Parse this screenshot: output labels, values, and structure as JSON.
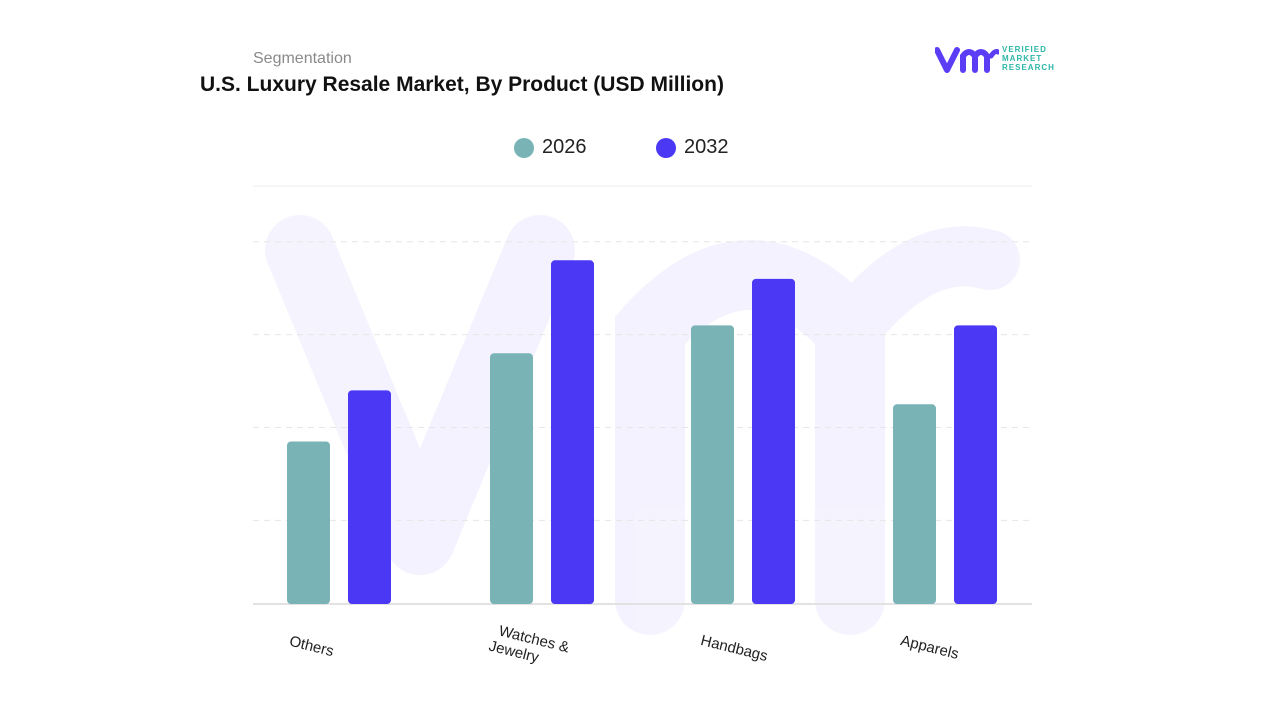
{
  "header": {
    "segment_label": "Segmentation",
    "title": "U.S. Luxury Resale Market, By Product (USD Million)"
  },
  "logo": {
    "line1": "VERIFIED",
    "line2": "MARKET",
    "line3": "RESEARCH",
    "color_primary": "#5b3df5",
    "color_secondary": "#2cb6a8"
  },
  "chart_data": {
    "type": "bar",
    "categories": [
      "Others",
      "Watches & Jewelry",
      "Handbags",
      "Apparels"
    ],
    "series": [
      {
        "name": "2026",
        "color": "#7ab3b6",
        "values": [
          35,
          54,
          60,
          43
        ]
      },
      {
        "name": "2032",
        "color": "#4b38f5",
        "values": [
          46,
          74,
          70,
          60
        ]
      }
    ],
    "ylim": [
      0,
      90
    ],
    "y_axis_labels_shown": false,
    "grid": true,
    "legend_position": "top-center",
    "xlabel": "",
    "ylabel": ""
  }
}
